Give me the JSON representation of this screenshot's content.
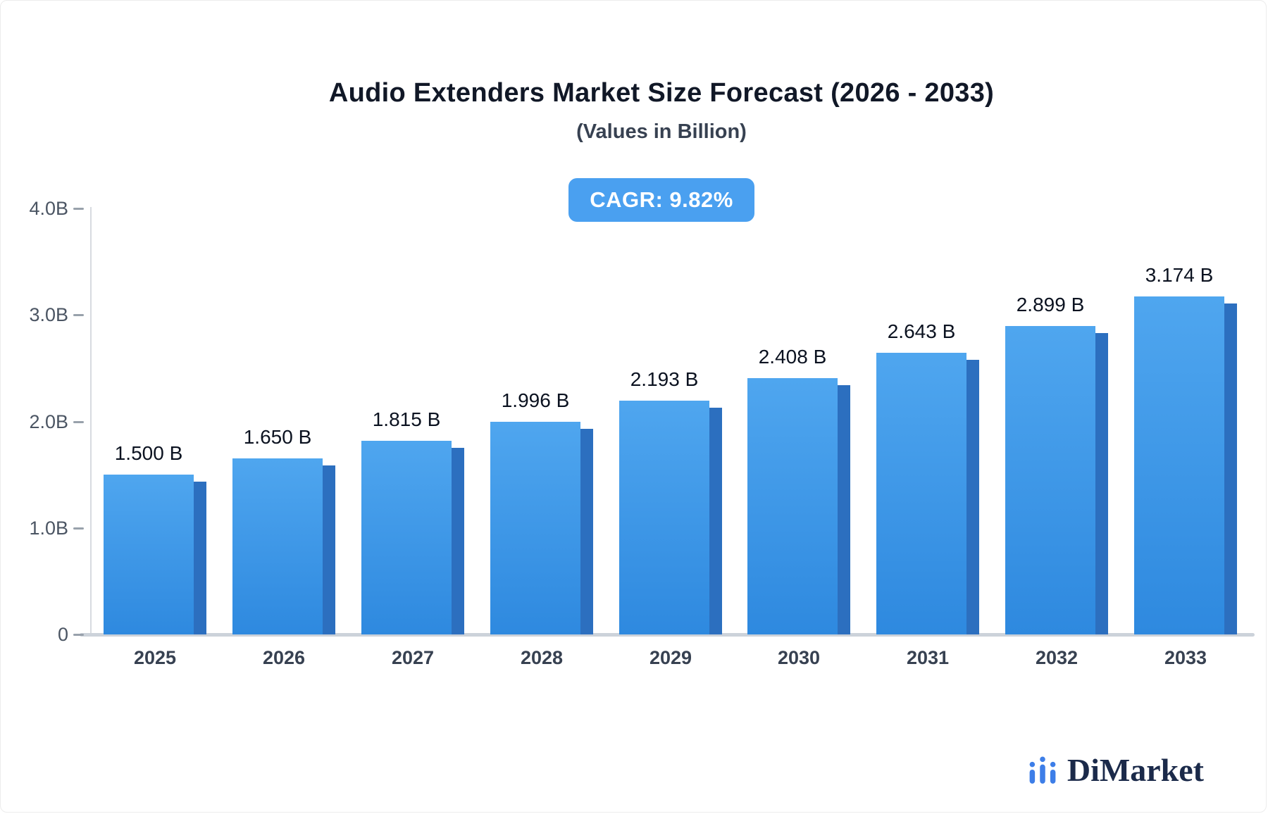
{
  "title": "Audio Extenders Market Size Forecast (2026 - 2033)",
  "subtitle": "(Values in Billion)",
  "badge": "CAGR: 9.82%",
  "logo": {
    "text": "DiMarket",
    "icon": "bar-chart-icon",
    "color": "#3d7ee8"
  },
  "chart_data": {
    "type": "bar",
    "title": "Audio Extenders Market Size Forecast (2026 - 2033)",
    "subtitle": "(Values in Billion)",
    "categories": [
      "2025",
      "2026",
      "2027",
      "2028",
      "2029",
      "2030",
      "2031",
      "2032",
      "2033"
    ],
    "values": [
      1.5,
      1.65,
      1.815,
      1.996,
      2.193,
      2.408,
      2.643,
      2.899,
      3.174
    ],
    "value_labels": [
      "1.500 B",
      "1.650 B",
      "1.815 B",
      "1.996 B",
      "2.193 B",
      "2.408 B",
      "2.643 B",
      "2.899 B",
      "3.174 B"
    ],
    "xlabel": "",
    "ylabel": "",
    "ylim": [
      0,
      4.0
    ],
    "yticks": [
      {
        "value": 0.0,
        "label": "0"
      },
      {
        "value": 1.0,
        "label": "1.0B"
      },
      {
        "value": 2.0,
        "label": "2.0B"
      },
      {
        "value": 3.0,
        "label": "3.0B"
      },
      {
        "value": 4.0,
        "label": "4.0B"
      }
    ],
    "grid": false,
    "legend": "none",
    "bar_color_top": "#4fa6ef",
    "bar_color_bottom": "#2e89df",
    "bar_side_color": "#2c6fbf",
    "badge_color": "#4aa0f0"
  }
}
